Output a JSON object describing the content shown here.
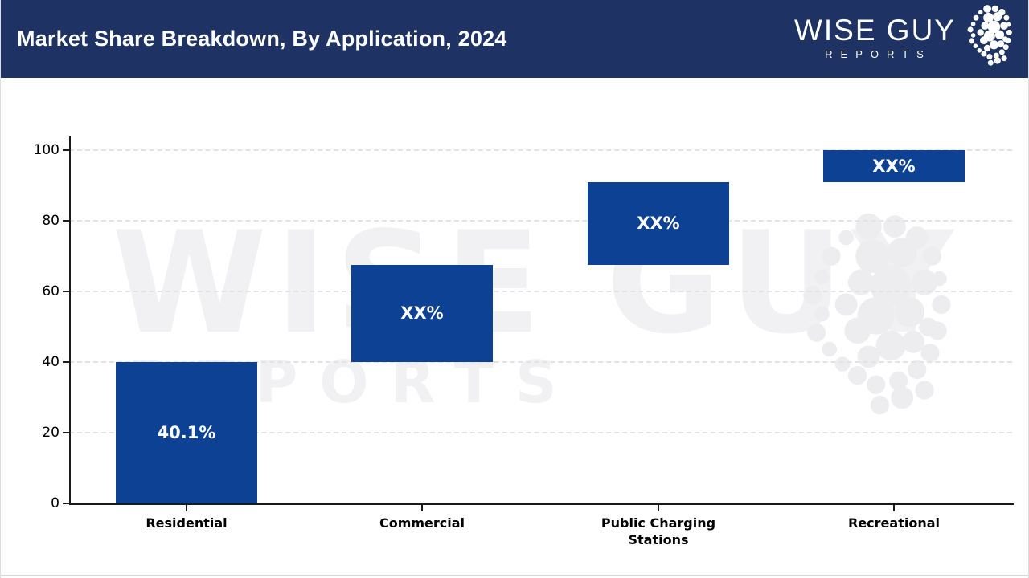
{
  "header": {
    "title": "Market Share Breakdown, By Application, 2024",
    "bg_color": "#1e3263",
    "logo": {
      "name": "WISE GUY",
      "subtext": "REPORTS"
    }
  },
  "watermark": {
    "text": "WISE GUY",
    "subtext": "REPORTS"
  },
  "chart_data": {
    "type": "bar",
    "subtype": "floating-waterfall",
    "title": "Market Share Breakdown, By Application, 2024",
    "categories": [
      "Residential",
      "Commercial",
      "Public Charging Stations",
      "Recreational"
    ],
    "series": [
      {
        "name": "Market share (%)",
        "segments": [
          {
            "category": "Residential",
            "start": 0,
            "end": 40.1,
            "label": "40.1%"
          },
          {
            "category": "Commercial",
            "start": 40.1,
            "end": 67.6,
            "label": "XX%"
          },
          {
            "category": "Public Charging Stations",
            "start": 67.6,
            "end": 90.9,
            "label": "XX%"
          },
          {
            "category": "Recreational",
            "start": 90.9,
            "end": 100,
            "label": "XX%"
          }
        ]
      }
    ],
    "xlabel": "",
    "ylabel": "",
    "ylim": [
      0,
      100
    ],
    "yticks": [
      0,
      20,
      40,
      60,
      80,
      100
    ],
    "grid": {
      "horizontal": true,
      "style": "dashed",
      "color": "#e3e3e3"
    },
    "legend": "none",
    "bar_color": "#0c4193",
    "bar_label_color": "#ffffff",
    "axis_color": "#1a1a1a"
  }
}
